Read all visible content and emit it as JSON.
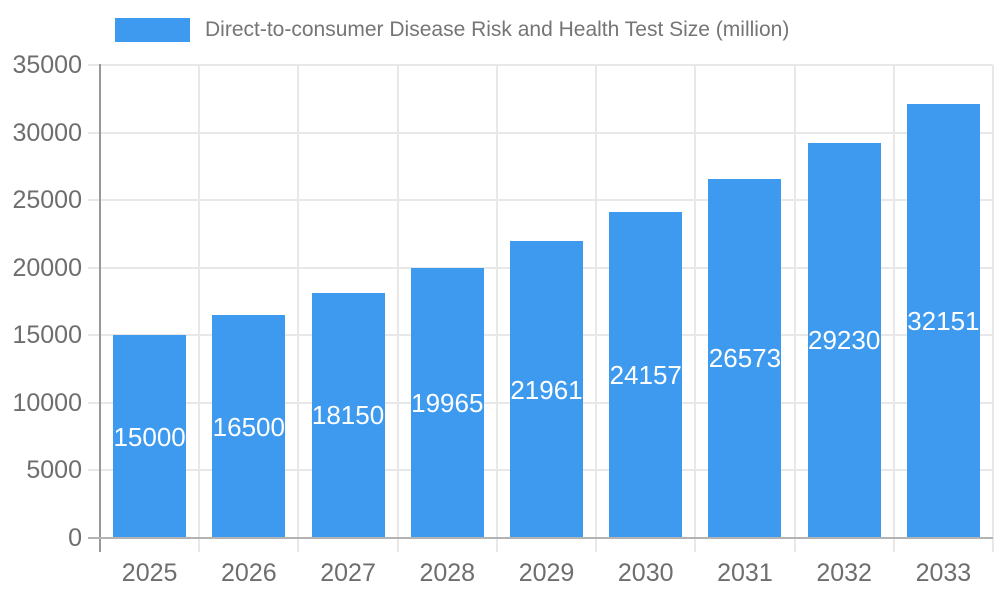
{
  "legend": {
    "label": "Direct-to-consumer Disease Risk and Health Test Size (million)"
  },
  "chart_data": {
    "type": "bar",
    "title": "Direct-to-consumer Disease Risk and Health Test Size (million)",
    "categories": [
      "2025",
      "2026",
      "2027",
      "2028",
      "2029",
      "2030",
      "2031",
      "2032",
      "2033"
    ],
    "values": [
      15000,
      16500,
      18150,
      19965,
      21961,
      24157,
      26573,
      29230,
      32151
    ],
    "xlabel": "",
    "ylabel": "",
    "ylim": [
      0,
      35000
    ],
    "ytick_step": 5000,
    "ytick_labels": [
      "0",
      "5000",
      "10000",
      "15000",
      "20000",
      "25000",
      "30000",
      "35000"
    ],
    "grid": true,
    "legend_position": "top-center",
    "bar_label_position": "center-inside"
  },
  "colors": {
    "bar": "#3d9aee",
    "bar_label": "#ffffff",
    "grid": "#e8e8e8",
    "y_axis": "#989898",
    "x_axis": "#b3b3b3",
    "text": "#6e6e6e",
    "legend_text": "#757575",
    "background": "#ffffff"
  }
}
